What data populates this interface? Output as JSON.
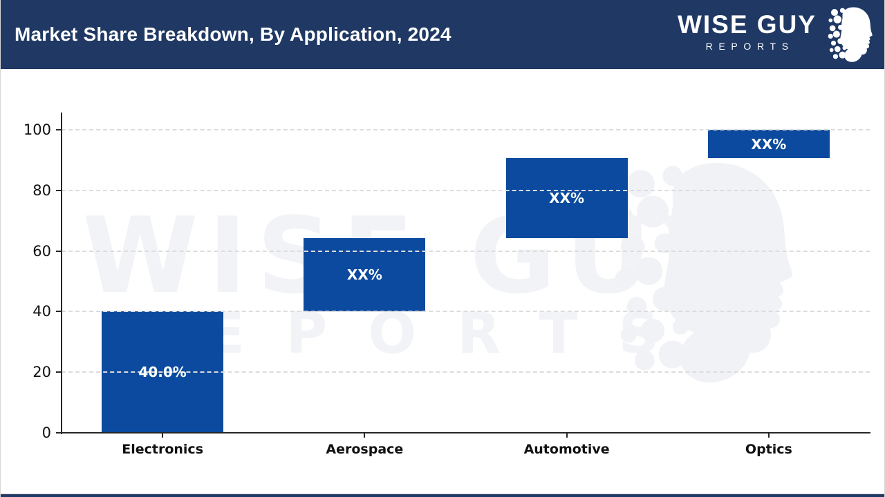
{
  "header": {
    "title": "Market Share Breakdown, By Application, 2024",
    "logo": {
      "line1": "WISE GUY",
      "line2": "REPORTS"
    }
  },
  "watermark": {
    "line1": "WISE GUY",
    "line2": "REPORTS"
  },
  "colors": {
    "header_bg": "#1f3864",
    "bar": "#0b4a9e",
    "bar_label": "#ffffff",
    "grid": "#dcdcdc",
    "axis": "#262626",
    "watermark": "#f1f2f5"
  },
  "chart_data": {
    "type": "bar",
    "subtype": "waterfall",
    "title": "Market Share Breakdown, By Application, 2024",
    "categories": [
      "Electronics",
      "Aerospace",
      "Automotive",
      "Optics"
    ],
    "segments": [
      {
        "category": "Electronics",
        "start": 0,
        "end": 40,
        "value": 40.0,
        "label": "40.0%"
      },
      {
        "category": "Aerospace",
        "start": 40,
        "end": 64.2,
        "value": 24.2,
        "label": "XX%"
      },
      {
        "category": "Automotive",
        "start": 64.2,
        "end": 90.6,
        "value": 26.4,
        "label": "XX%"
      },
      {
        "category": "Optics",
        "start": 90.6,
        "end": 100,
        "value": 9.4,
        "label": "XX%"
      }
    ],
    "yticks": [
      0,
      20,
      40,
      60,
      80,
      100
    ],
    "ylim": [
      0,
      105
    ],
    "xlabel": "",
    "ylabel": "",
    "grid": "dashed-horizontal",
    "legend": "none"
  }
}
